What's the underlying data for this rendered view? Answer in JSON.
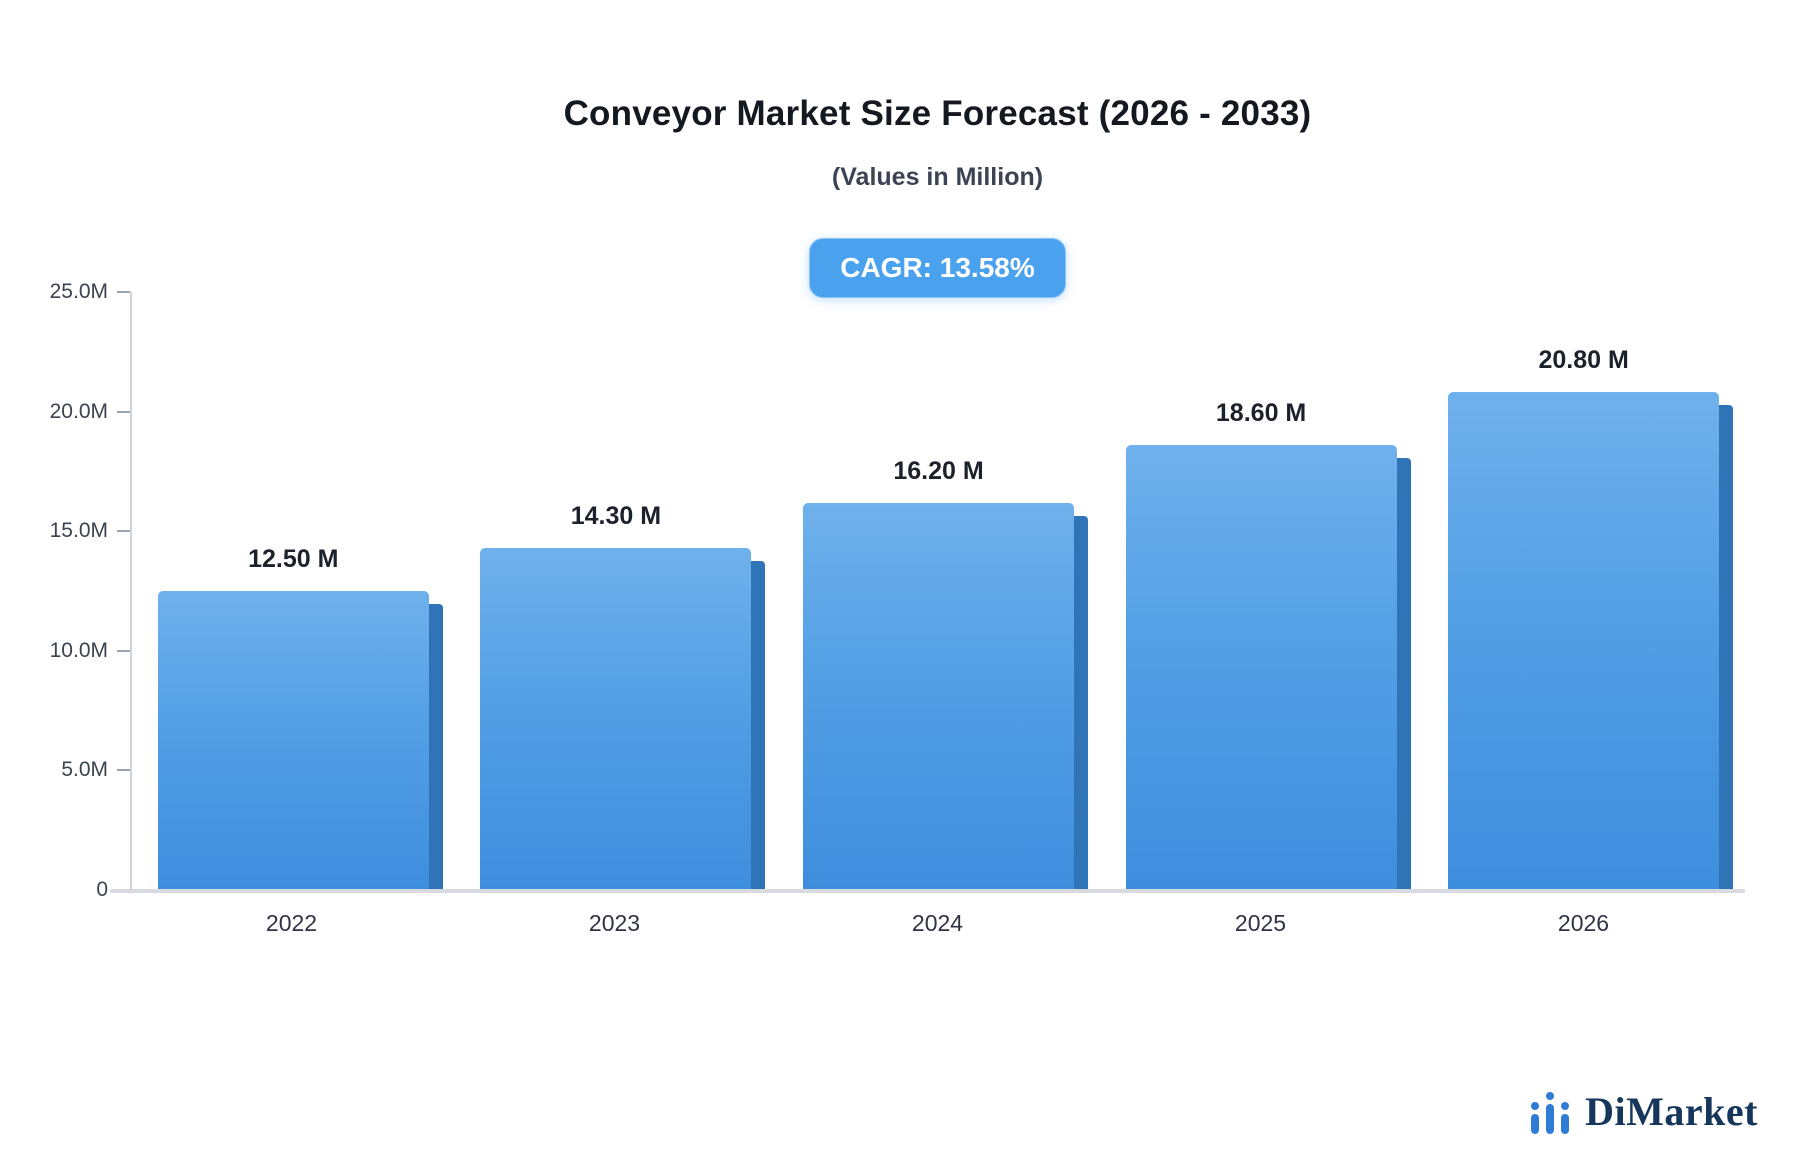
{
  "chart_data": {
    "type": "bar",
    "title": "Conveyor Market Size Forecast (2026 - 2033)",
    "subtitle": "(Values in Million)",
    "badge_label": "CAGR: 13.58%",
    "categories": [
      "2022",
      "2023",
      "2024",
      "2025",
      "2026"
    ],
    "values": [
      12.5,
      14.3,
      16.2,
      18.6,
      20.8
    ],
    "value_labels": [
      "12.50 M",
      "14.30 M",
      "16.20 M",
      "18.60 M",
      "20.80 M"
    ],
    "xlabel": "",
    "ylabel": "",
    "ylim": [
      0,
      25
    ],
    "y_ticks": [
      {
        "label": "25.0M",
        "value": 25
      },
      {
        "label": "20.0M",
        "value": 20
      },
      {
        "label": "15.0M",
        "value": 15
      },
      {
        "label": "10.0M",
        "value": 10
      },
      {
        "label": "5.0M",
        "value": 5
      },
      {
        "label": "0",
        "value": 0
      }
    ],
    "grid": false,
    "legend": false,
    "colors": {
      "bar_gradient_top": "#6fb1ec",
      "bar_gradient_bottom": "#3e8ede",
      "bar_side_3d": "#2e74b6",
      "badge_background": "#4aa2ef",
      "badge_text": "#ffffff",
      "axis_line": "#cfd4da",
      "tick_text": "#3b4250",
      "value_text": "#1c212b"
    }
  },
  "logo": {
    "icon": "bar-chart-icon",
    "text": "DiMarket",
    "text_color": "#16365c",
    "icon_color": "#2e7cd6"
  }
}
